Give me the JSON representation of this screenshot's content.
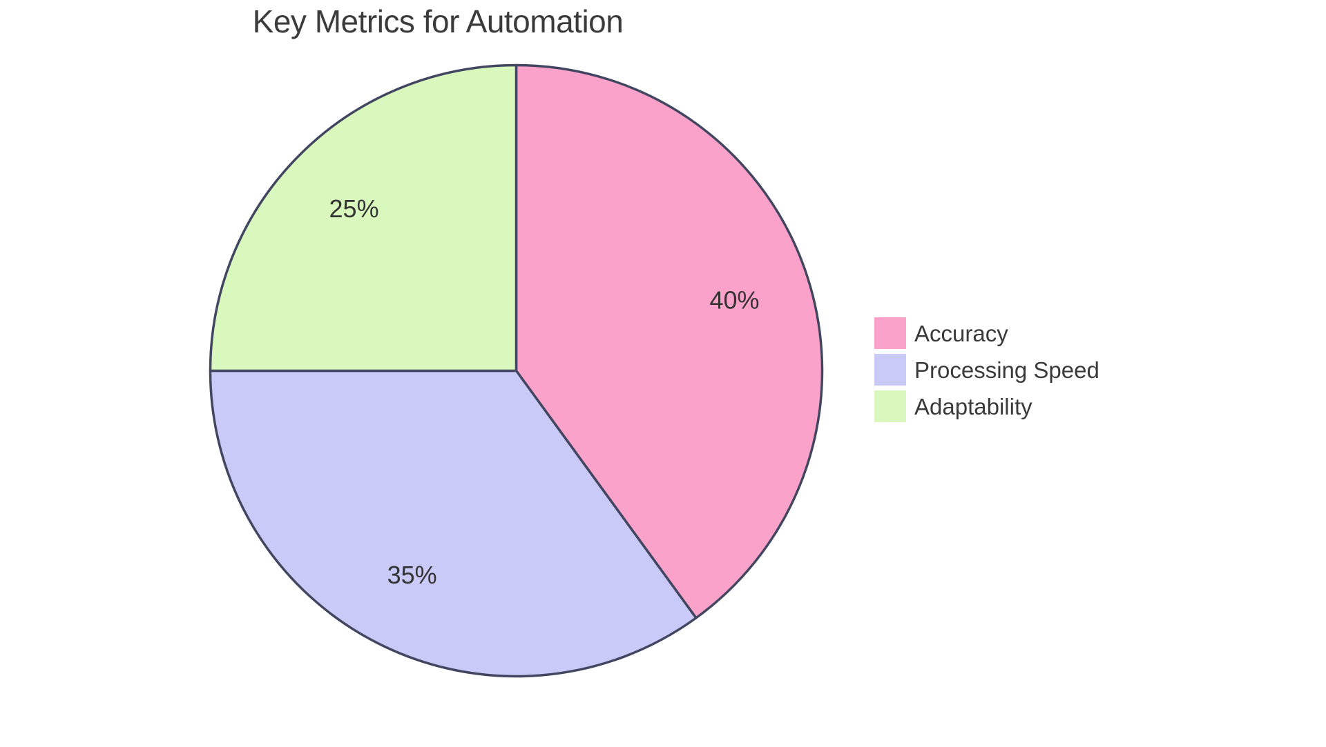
{
  "page": {
    "background_color": "#FFFFFF"
  },
  "chart_data": {
    "type": "pie",
    "title": "Key Metrics for Automation",
    "series": [
      {
        "label": "Accuracy",
        "value": 40,
        "display_value": "40%",
        "color": "#FAA2C9"
      },
      {
        "label": "Processing Speed",
        "value": 35,
        "display_value": "35%",
        "color": "#C9CAF7"
      },
      {
        "label": "Adaptability",
        "value": 25,
        "display_value": "25%",
        "color": "#D9F8BD"
      }
    ],
    "unit": "%",
    "start_angle": "top",
    "direction": "clockwise",
    "slice_outline_color": "#434660",
    "slice_label_color": "#333333",
    "title_color": "#3B3B3B",
    "legend_position": "right",
    "legend_text_color": "#3A3A3A",
    "legend_labels": [
      "Accuracy",
      "Processing Speed",
      "Adaptability"
    ]
  }
}
